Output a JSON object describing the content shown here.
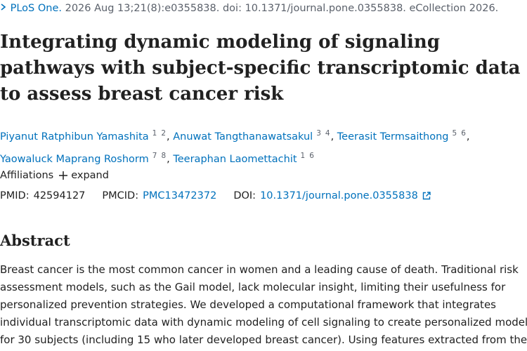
{
  "citation": {
    "journal": "PLoS One.",
    "details": "2026 Aug 13;21(8):e0355838. doi: 10.1371/journal.pone.0355838. eCollection 2026."
  },
  "title": "Integrating dynamic modeling of signaling pathways with subject-specific transcriptomic data to assess breast cancer risk",
  "authors": {
    "separator": ",",
    "list": [
      {
        "name": "Piyanut Ratphibun Yamashita",
        "affiliations": [
          "1",
          "2"
        ]
      },
      {
        "name": "Anuwat Tangthanawatsakul",
        "affiliations": [
          "3",
          "4"
        ]
      },
      {
        "name": "Teerasit Termsaithong",
        "affiliations": [
          "5",
          "6"
        ]
      },
      {
        "name": "Yaowaluck Maprang Roshorm",
        "affiliations": [
          "7",
          "8"
        ]
      },
      {
        "name": "Teeraphan Laomettachit",
        "affiliations": [
          "1",
          "6"
        ]
      }
    ]
  },
  "affiliations": {
    "label": "Affiliations",
    "expand": "expand"
  },
  "ids": {
    "pmid_label": "PMID:",
    "pmid": "42594127",
    "pmcid_label": "PMCID:",
    "pmcid": "PMC13472372",
    "doi_label": "DOI:",
    "doi": "10.1371/journal.pone.0355838"
  },
  "abstract": {
    "heading": "Abstract",
    "lines": [
      "Breast cancer is the most common cancer in women and a leading cause of death. Traditional risk",
      "assessment models, such as the Gail model, lack molecular insight, limiting their usefulness for",
      "personalized prevention strategies. We developed a computational framework that integrates",
      "individual transcriptomic data with dynamic modeling of cell signaling to create personalized models",
      "for 30 subjects (including 15 who later developed breast cancer). Using features extracted from the"
    ]
  }
}
